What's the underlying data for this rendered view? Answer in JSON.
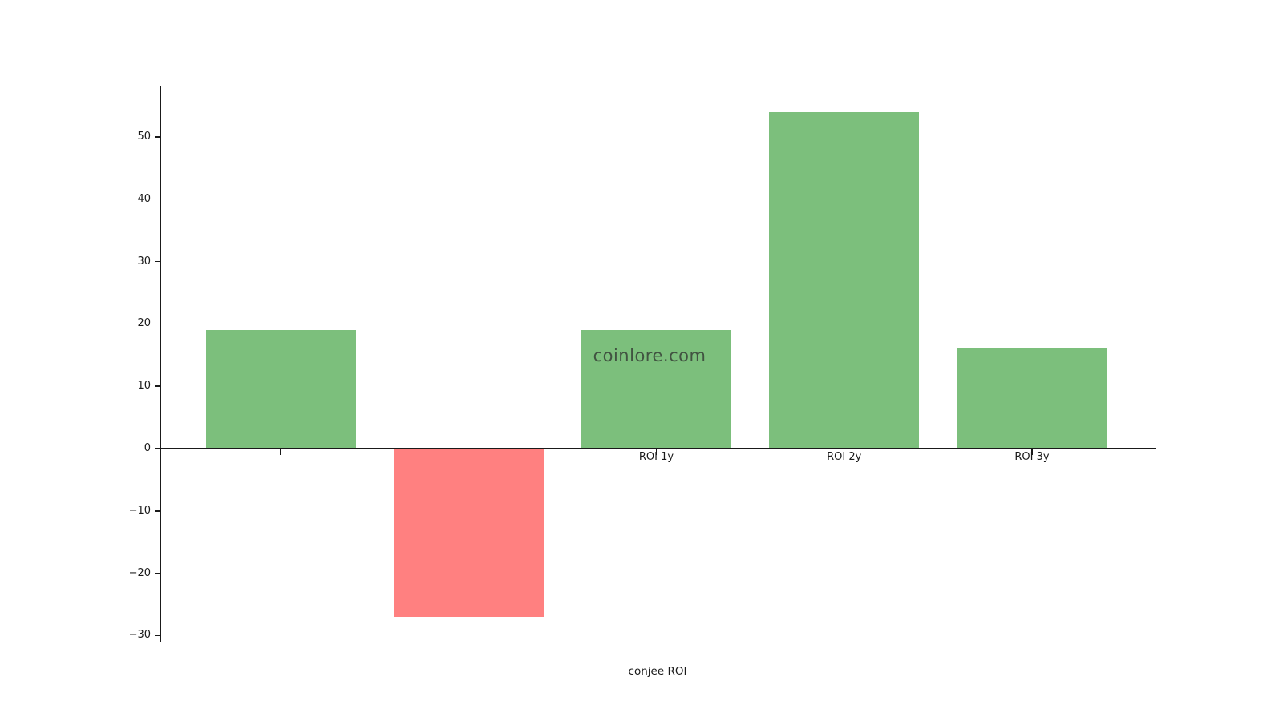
{
  "page": {
    "background": "#ffffff"
  },
  "watermark": {
    "text": "coinlore.com",
    "color": "#343a34"
  },
  "chart_data": {
    "type": "bar",
    "title": "",
    "xlabel": "conjee ROI",
    "ylabel": "",
    "categories": [
      "",
      "",
      "ROI 1y",
      "ROI 2y",
      "ROI 3y"
    ],
    "values": [
      19,
      -27,
      19,
      54,
      16
    ],
    "bar_colors": {
      "positive": "#7cbf7c",
      "negative": "#ff8080"
    },
    "axis_color": "#1a1a1a",
    "yticks": [
      -30,
      -20,
      -10,
      0,
      10,
      20,
      30,
      40,
      50
    ],
    "ylim": [
      -31,
      58
    ],
    "grid": false,
    "legend": null
  }
}
